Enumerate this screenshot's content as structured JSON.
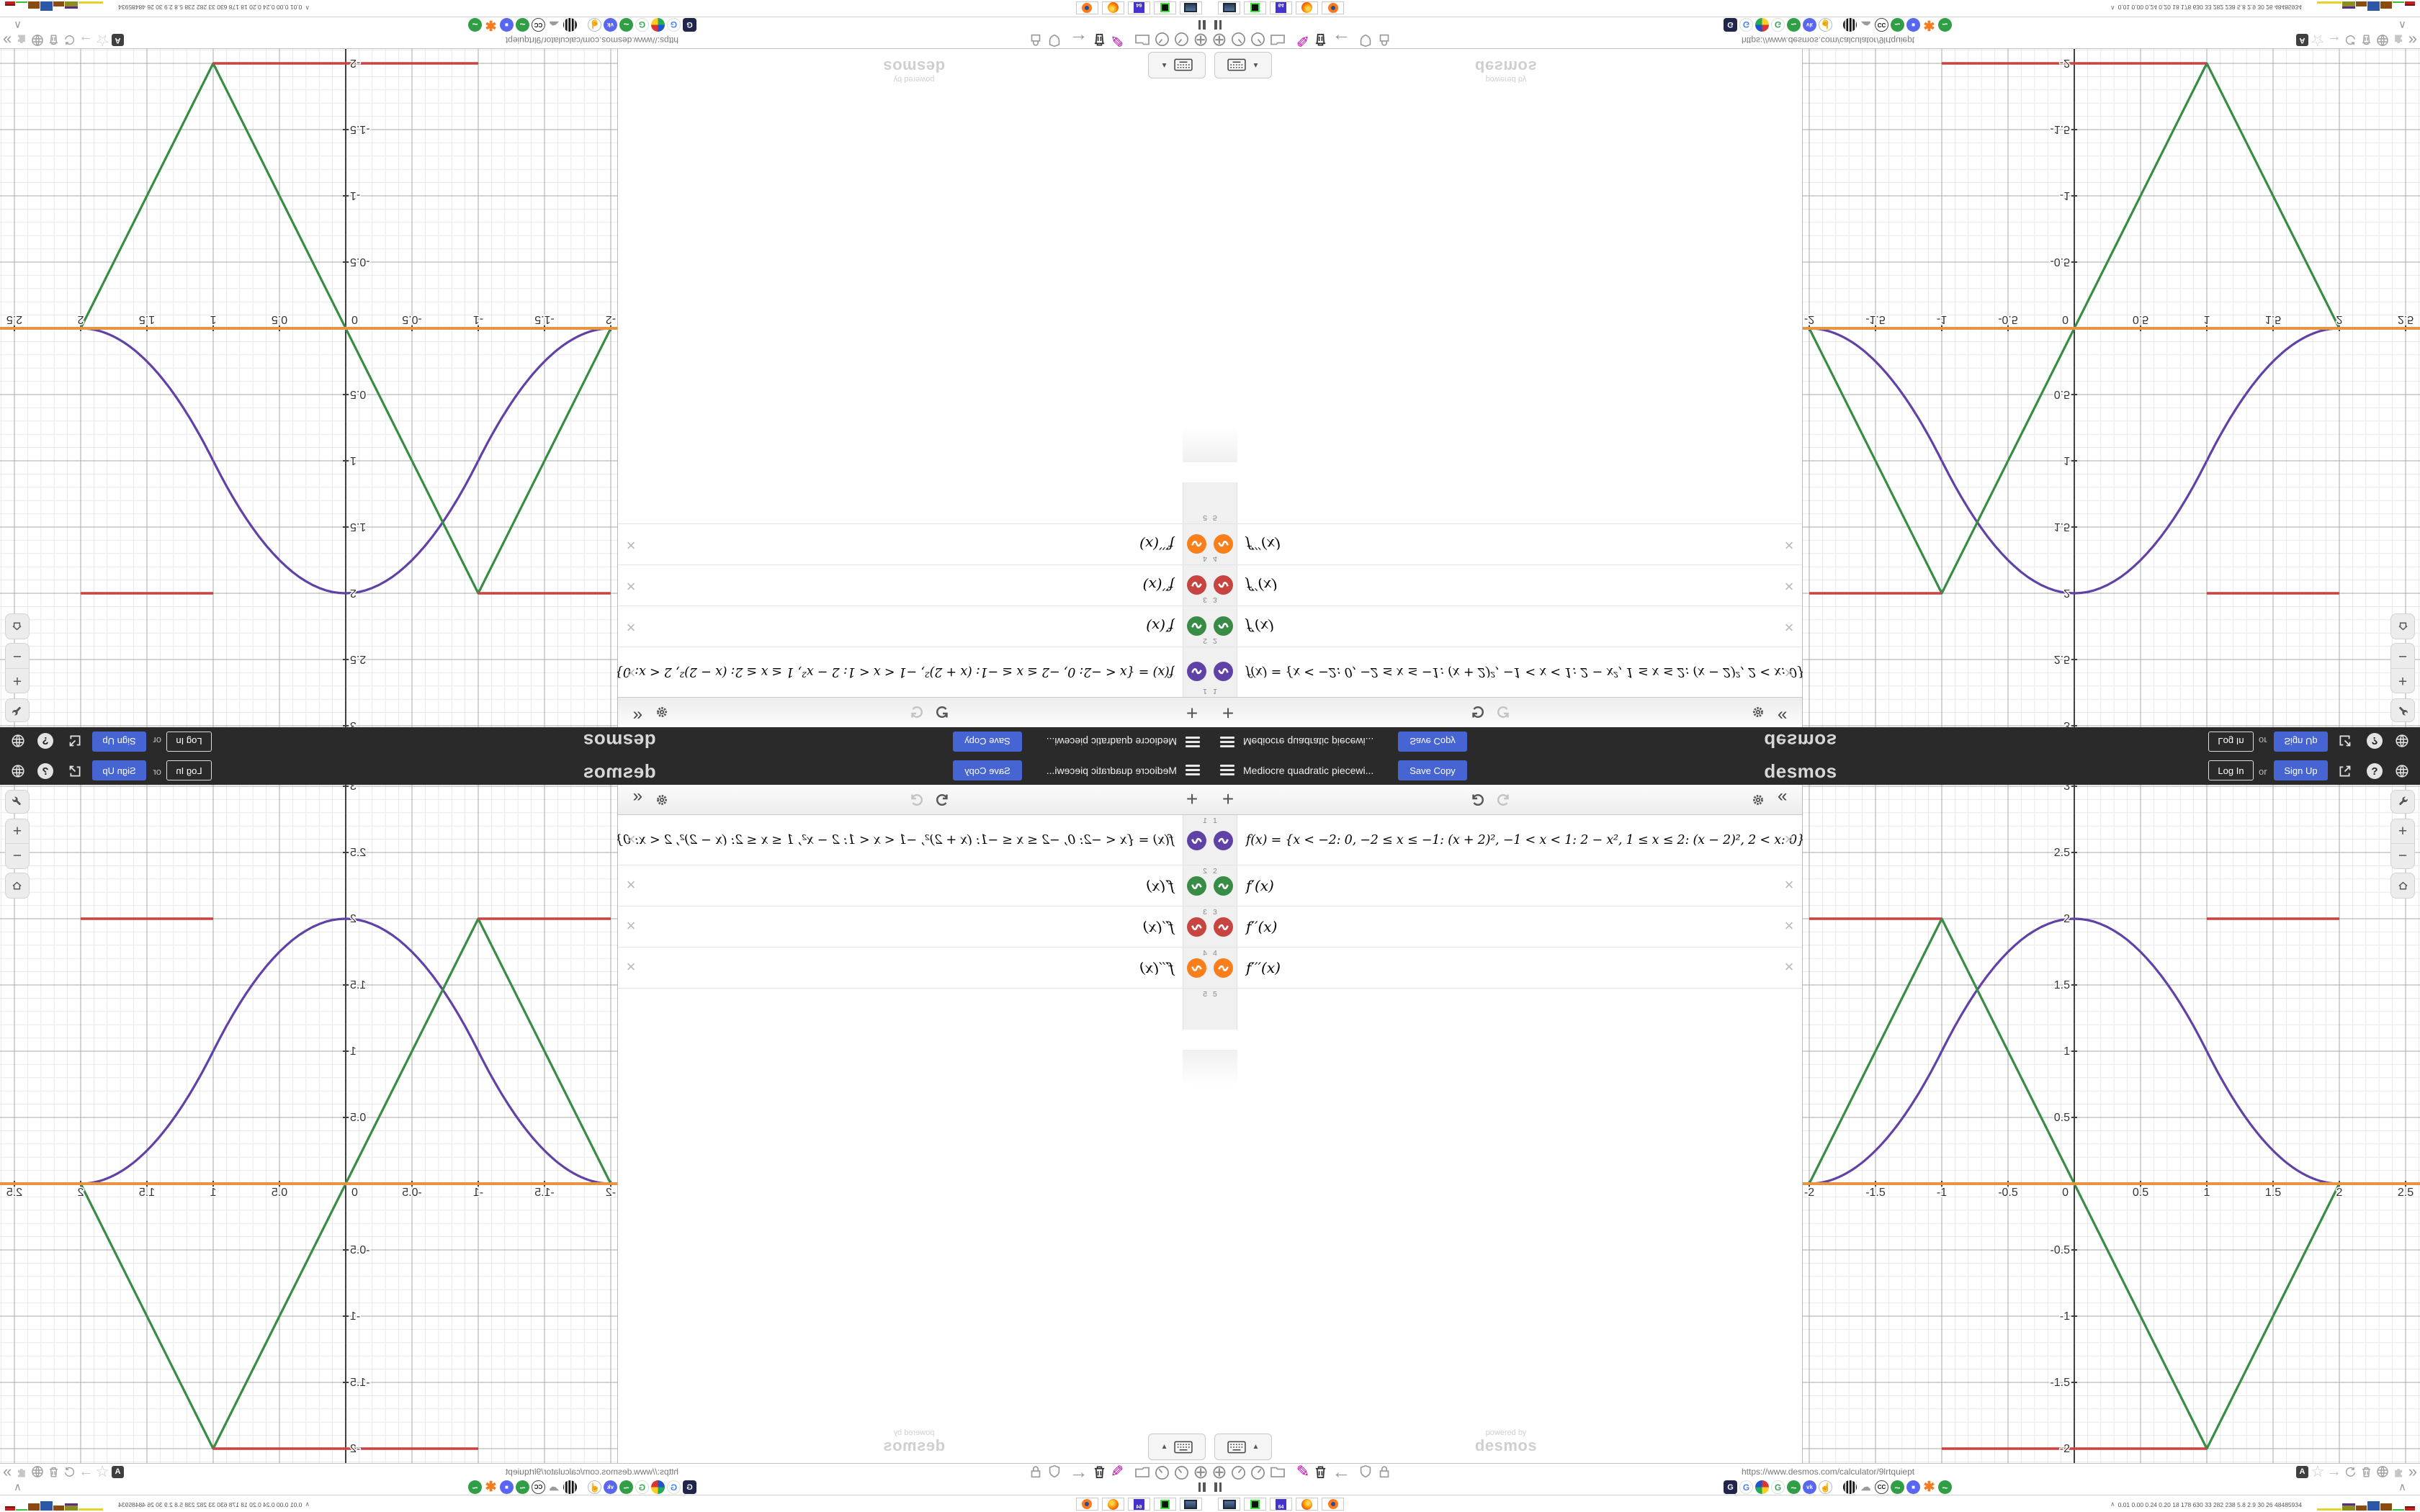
{
  "header": {
    "title": "Mediocre quadratic piecewi...",
    "save_copy": "Save Copy",
    "logo": "desmos",
    "log_in": "Log In",
    "or": "or",
    "sign_up": "Sign Up",
    "accent_blue": "#4665d2"
  },
  "toolbar": {
    "add": "+",
    "collapse": "«"
  },
  "expressions": {
    "delete": "×",
    "watermark1": "powered by",
    "watermark2": "desmos",
    "keyboard_tri": "▲",
    "rows": [
      {
        "index": "1",
        "color": "#6042a6",
        "formula": "f(x) = {x < −2: 0, −2 ≤ x ≤ −1: (x + 2)², −1 < x < 1: 2 − x², 1 ≤ x ≤ 2: (x − 2)², 2 < x: 0}"
      },
      {
        "index": "2",
        "color": "#388c46",
        "formula": "f′(x)"
      },
      {
        "index": "3",
        "color": "#c74440",
        "formula": "f′′(x)"
      },
      {
        "index": "4",
        "color": "#fa7e19",
        "formula": "f′′′(x)"
      },
      {
        "index": "5",
        "color": "",
        "formula": ""
      }
    ]
  },
  "graph_controls": {
    "zoom_in": "+",
    "zoom_out": "−"
  },
  "chart_data": {
    "type": "line",
    "title": "",
    "xlabel": "",
    "ylabel": "",
    "x_range": [
      -2.05,
      2.61
    ],
    "y_range": [
      -2.11,
      3.02
    ],
    "grid": {
      "minor_step": 0.1,
      "major_step": 0.5,
      "minor_color": "#e8e8e8",
      "major_color": "#a8a8a8",
      "axis_color": "#404040",
      "label_color": "#333333"
    },
    "x_ticks": [
      -2,
      -1.5,
      -1,
      -0.5,
      0.5,
      1,
      1.5,
      2,
      2.5
    ],
    "y_ticks": [
      -2,
      -1.5,
      -1,
      -0.5,
      0.5,
      1,
      1.5,
      2,
      2.5,
      3
    ],
    "origin_label": "0",
    "series": [
      {
        "name": "f(x)",
        "color": "#6042a6",
        "width": 3.2,
        "kind": "quadratic_pieces",
        "pieces": [
          {
            "coef": [
              0,
              0,
              0
            ],
            "from": -2.05,
            "to": -2
          },
          {
            "coef": [
              1,
              4,
              4
            ],
            "from": -2,
            "to": -1
          },
          {
            "coef": [
              -1,
              0,
              2
            ],
            "from": -1,
            "to": 1
          },
          {
            "coef": [
              1,
              -4,
              4
            ],
            "from": 1,
            "to": 2
          },
          {
            "coef": [
              0,
              0,
              0
            ],
            "from": 2,
            "to": 2.61
          }
        ]
      },
      {
        "name": "f'(x)",
        "color": "#388c46",
        "width": 3.2,
        "kind": "polyline",
        "points": [
          [
            -2,
            0
          ],
          [
            -1,
            2
          ],
          [
            1,
            -2
          ],
          [
            2,
            0
          ]
        ]
      },
      {
        "name": "f''(x)",
        "color": "#c74440",
        "width": 3.5,
        "kind": "segments",
        "segments": [
          [
            [
              -2,
              2
            ],
            [
              -1,
              2
            ]
          ],
          [
            [
              -1,
              -2
            ],
            [
              1,
              -2
            ]
          ],
          [
            [
              1,
              2
            ],
            [
              2,
              2
            ]
          ]
        ]
      },
      {
        "name": "f'''(x)",
        "color": "#e59544",
        "width": 4,
        "kind": "segments",
        "segments": [
          [
            [
              -2.05,
              0
            ],
            [
              2.61,
              0
            ]
          ]
        ]
      }
    ]
  },
  "statusbar": {
    "url": "https://www.desmos.com/calculator/9lrtquiept",
    "left_icons": [
      {
        "name": "globe-network-icon",
        "glyph": "⊕",
        "fg": "#8d8d8d",
        "size": 26
      },
      {
        "name": "gauge-icon",
        "svg": "gauge",
        "fg": "#8d8d8d",
        "size": 23
      },
      {
        "name": "gauge-icon-2",
        "svg": "gauge",
        "fg": "#8d8d8d",
        "size": 23
      },
      {
        "name": "folder-icon",
        "svg": "folder",
        "fg": "#9a9a9a",
        "size": 24
      },
      {
        "name": "marker-pen-icon",
        "glyph": "✎",
        "fg": "#bb00a8",
        "size": 22,
        "ml": 10
      },
      {
        "name": "trash-icon",
        "svg": "trash",
        "fg": "#2e2e2e",
        "size": 23
      },
      {
        "name": "back-arrow-icon",
        "glyph": "←",
        "fg": "#9a9a9a",
        "size": 26
      },
      {
        "name": "shield-icon",
        "svg": "shield",
        "fg": "#9a9a9a",
        "size": 22,
        "ml": 6
      },
      {
        "name": "lock-icon",
        "svg": "lock",
        "fg": "#9a9a9a",
        "size": 22
      }
    ],
    "right_icons": [
      {
        "name": "translate-icon",
        "variant": "box",
        "glyph": "A",
        "bg": "#3f3f3f",
        "fg": "#fff"
      },
      {
        "name": "star-icon",
        "glyph": "☆",
        "fg": "#c9c9c9",
        "size": 22
      },
      {
        "name": "forward-arrow-icon",
        "glyph": "→",
        "fg": "#c0c0c0",
        "size": 20
      },
      {
        "name": "refresh-icon",
        "svg": "refresh",
        "fg": "#a0a0a0",
        "size": 19
      },
      {
        "name": "bin-icon",
        "svg": "trash",
        "fg": "#a0a0a0",
        "size": 19
      },
      {
        "name": "globe-grid-icon",
        "svg": "globe",
        "fg": "#a0a0a0",
        "size": 20
      },
      {
        "name": "puzzle-icon",
        "svg": "puzzle",
        "fg": "#c6c6c6",
        "size": 20
      },
      {
        "name": "more-chevrons-icon",
        "glyph": "»",
        "fg": "#9a9a9a",
        "size": 22
      },
      {
        "name": "menu-lines-icon",
        "glyph": "≡",
        "fg": "#9a9a9a",
        "size": 22
      }
    ]
  },
  "dock": {
    "chevron": "∧",
    "favicons": [
      {
        "name": "glitch-favicon",
        "shape": "square",
        "bg": "#20254d",
        "fg": "#fff",
        "glyph": "G",
        "fs": 11
      },
      {
        "name": "google-favicon",
        "shape": "circle",
        "bg": "#fff",
        "fg": "#4285f4",
        "glyph": "G",
        "border": "#ddd",
        "fs": 12
      },
      {
        "name": "pinwheel-favicon",
        "shape": "circle",
        "bg": "pin",
        "glyph": ""
      },
      {
        "name": "google-favicon-2",
        "shape": "circle",
        "bg": "#fff",
        "fg": "#34a853",
        "glyph": "G",
        "border": "#ddd",
        "fs": 12
      },
      {
        "name": "wave-favicon",
        "shape": "circle",
        "bg": "#2f9e44",
        "fg": "#fff",
        "glyph": "~",
        "fs": 14
      },
      {
        "name": "vk-favicon",
        "shape": "circle",
        "bg": "#5966f2",
        "fg": "#fff",
        "glyph": "vk",
        "fs": 8
      },
      {
        "name": "thumb-favicon",
        "shape": "circle",
        "bg": "#fff",
        "fg": "#9a9a9a",
        "glyph": "☝",
        "border": "#bbb",
        "fs": 12
      },
      {
        "name": "barrel-favicon",
        "shape": "circle",
        "bg": "stripes",
        "glyph": "",
        "ml": 12
      },
      {
        "name": "fish-favicon",
        "shape": "none",
        "fg": "#9a9a9a",
        "glyph": "☁",
        "fs": 14
      },
      {
        "name": "cc-favicon",
        "shape": "circle",
        "bg": "#fff",
        "fg": "#111",
        "glyph": "CC",
        "border": "#444",
        "fs": 8
      },
      {
        "name": "wave-favicon-2",
        "shape": "circle",
        "bg": "#2f9e44",
        "fg": "#fff",
        "glyph": "~",
        "fs": 14
      },
      {
        "name": "chat-favicon",
        "shape": "circle",
        "bg": "#5966f2",
        "fg": "#fff",
        "glyph": "■",
        "fs": 8
      },
      {
        "name": "gear-favicon",
        "shape": "none",
        "fg": "#f47b20",
        "glyph": "✱",
        "fs": 19
      },
      {
        "name": "wave-favicon-3",
        "shape": "circle",
        "bg": "#2f9e44",
        "fg": "#fff",
        "glyph": "~",
        "fs": 14
      }
    ]
  },
  "taskbar": {
    "stats": "0.01 0.00 0.24 0.20   18   178  630   33   282  238   5.8   2.9   30   26   48485934",
    "apps": [
      {
        "name": "app-screenshot",
        "variant": "monitor"
      },
      {
        "name": "app-media",
        "variant": "greencard"
      },
      {
        "name": "app-emulator",
        "variant": "floppy",
        "label": "64"
      },
      {
        "name": "app-firefox",
        "variant": "firefox"
      },
      {
        "name": "app-blender",
        "variant": "blender"
      }
    ],
    "mini_charts": [
      {
        "name": "cpu-sparkline",
        "color": "#e6d32a",
        "w": 34,
        "h": 3
      },
      {
        "name": "load-graph",
        "color": "#8a8f1f",
        "top": "#5e2a8a",
        "w": 18,
        "h": 10
      },
      {
        "name": "mem-block-1",
        "color": "#8a4a10",
        "w": 15,
        "h": 7
      },
      {
        "name": "mem-block-2",
        "color": "#2b57a7",
        "w": 17,
        "h": 13
      },
      {
        "name": "mem-block-3",
        "color": "#8a4a10",
        "w": 16,
        "h": 10
      },
      {
        "name": "net-line",
        "color": "#3dbb3d",
        "w": 16,
        "h": 2
      },
      {
        "name": "io-graph",
        "color": "#bb2222",
        "top": "#7a1010",
        "w": 14,
        "h": 6
      }
    ]
  }
}
